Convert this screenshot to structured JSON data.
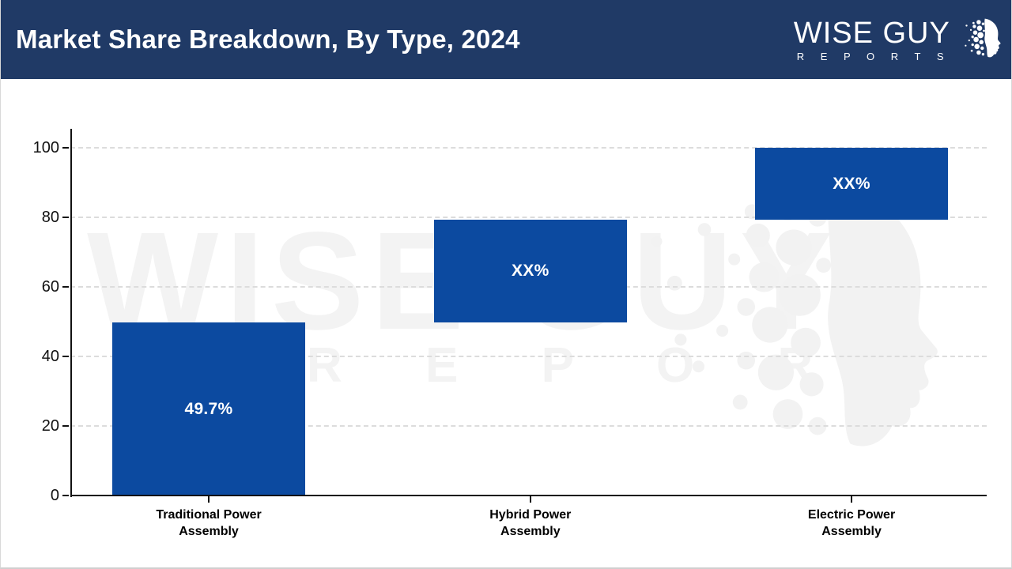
{
  "header": {
    "title": "Market Share Breakdown, By Type, 2024",
    "background_color": "#203A66",
    "logo": {
      "line1": "WISE GUY",
      "line2": "R E P O R T S"
    }
  },
  "watermark": {
    "line1": "WISE GUY",
    "line2": "R O R T S",
    "full_line2": "R E P O R T S"
  },
  "chart_data": {
    "type": "bar",
    "subtype": "stacked-waterfall",
    "title": "Market Share Breakdown, By Type, 2024",
    "categories": [
      "Traditional Power\nAssembly",
      "Hybrid Power\nAssembly",
      "Electric Power\nAssembly"
    ],
    "segments": [
      {
        "category": "Traditional Power\nAssembly",
        "start": 0,
        "end": 49.7,
        "label": "49.7%"
      },
      {
        "category": "Hybrid Power\nAssembly",
        "start": 49.7,
        "end": 79.3,
        "label": "XX%"
      },
      {
        "category": "Electric Power\nAssembly",
        "start": 79.3,
        "end": 100,
        "label": "XX%"
      }
    ],
    "values_note": "labels XX% are masked in source; segment spans read from axis",
    "xlabel": "",
    "ylabel": "",
    "yticks": [
      0,
      20,
      40,
      60,
      80,
      100
    ],
    "ylim": [
      0,
      105.5
    ],
    "grid": "horizontal-dashed",
    "legend": "none",
    "bar_color": "#0C4AA0",
    "bar_label_color": "#ffffff",
    "axis_color": "#111111",
    "gridline_color": "#dcdcdc"
  }
}
